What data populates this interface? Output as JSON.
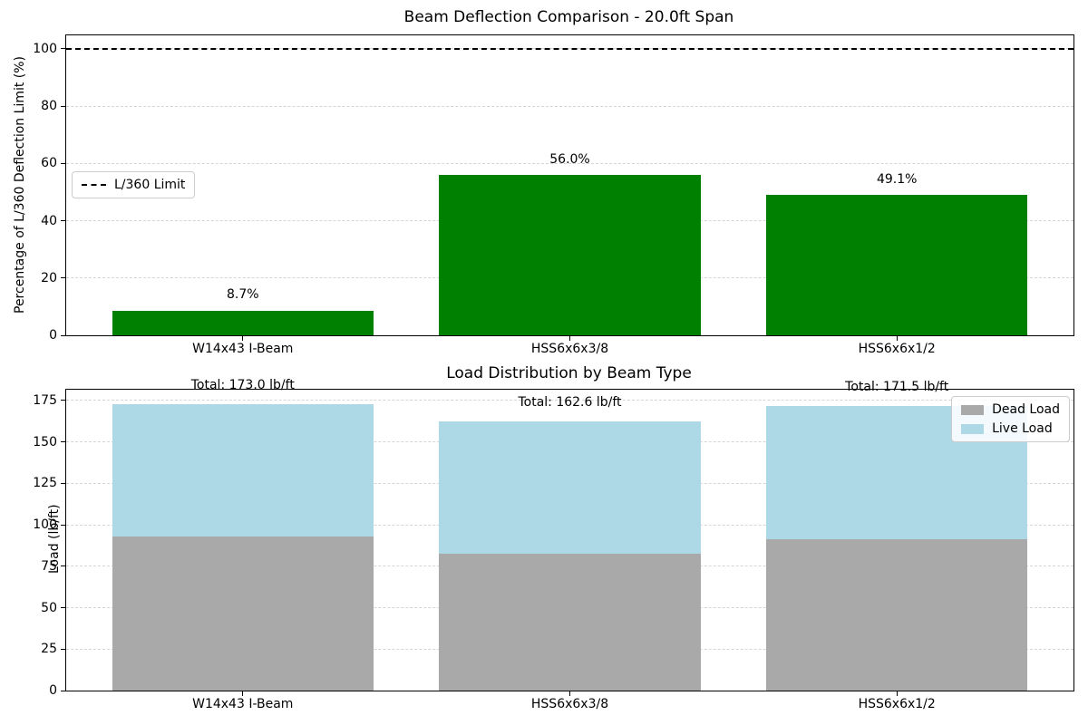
{
  "figure": {
    "background": "#ffffff"
  },
  "chart_data": [
    {
      "type": "bar",
      "title": "Beam Deflection Comparison - 20.0ft Span",
      "ylabel": "Percentage of L/360 Deflection Limit (%)",
      "xlabel": "",
      "categories": [
        "W14x43 I-Beam",
        "HSS6x6x3/8",
        "HSS6x6x1/2"
      ],
      "values": [
        8.7,
        56.0,
        49.1
      ],
      "bar_labels": [
        "8.7%",
        "56.0%",
        "49.1%"
      ],
      "bar_color": "#008000",
      "yticks": [
        0,
        20,
        40,
        60,
        80,
        100
      ],
      "ylim": [
        0,
        104.7
      ],
      "grid": "dashed-y",
      "legend_position": "left-center",
      "reference_line": {
        "value": 100,
        "label": "L/360 Limit",
        "color": "#000000",
        "style": "dashed"
      },
      "legend": [
        {
          "label": "L/360 Limit",
          "marker": "dashed-line",
          "color": "#000000"
        }
      ]
    },
    {
      "type": "stacked-bar",
      "title": "Load Distribution by Beam Type",
      "ylabel": "Load (lb/ft)",
      "xlabel": "",
      "categories": [
        "W14x43 I-Beam",
        "HSS6x6x3/8",
        "HSS6x6x1/2"
      ],
      "series": [
        {
          "name": "Dead Load",
          "color": "#a9a9a9",
          "values": [
            93.0,
            82.6,
            91.5
          ]
        },
        {
          "name": "Live Load",
          "color": "#add8e6",
          "values": [
            80.0,
            80.0,
            80.0
          ]
        }
      ],
      "total_labels": [
        "Total: 173.0 lb/ft",
        "Total: 162.6 lb/ft",
        "Total: 171.5 lb/ft"
      ],
      "yticks": [
        0,
        25,
        50,
        75,
        100,
        125,
        150,
        175
      ],
      "ylim": [
        0,
        181.5
      ],
      "grid": "dashed-y",
      "legend_position": "top-right",
      "legend": [
        {
          "label": "Dead Load",
          "marker": "patch",
          "color": "#a9a9a9"
        },
        {
          "label": "Live Load",
          "marker": "patch",
          "color": "#add8e6"
        }
      ]
    }
  ]
}
